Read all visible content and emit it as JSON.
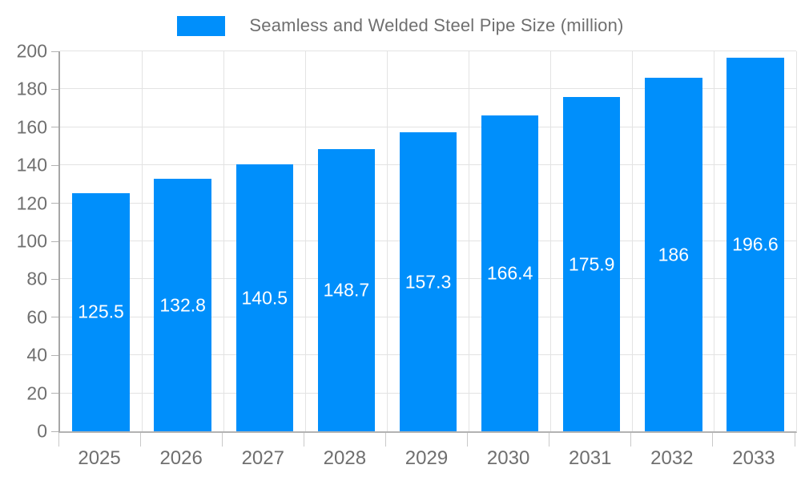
{
  "chart_data": {
    "type": "bar",
    "title": "Seamless and Welded Steel Pipe Size (million)",
    "legend": [
      {
        "label": "Seamless and Welded Steel Pipe Size (million)"
      }
    ],
    "legend_position": "top",
    "categories": [
      "2025",
      "2026",
      "2027",
      "2028",
      "2029",
      "2030",
      "2031",
      "2032",
      "2033"
    ],
    "values": [
      125.5,
      132.8,
      140.5,
      148.7,
      157.3,
      166.4,
      175.9,
      186,
      196.6
    ],
    "value_labels": [
      "125.5",
      "132.8",
      "140.5",
      "148.7",
      "157.3",
      "166.4",
      "175.9",
      "186",
      "196.6"
    ],
    "xlabel": "",
    "ylabel": "",
    "ylim": [
      0,
      200
    ],
    "y_tick_step": 20,
    "y_tick_labels": [
      "0",
      "20",
      "40",
      "60",
      "80",
      "100",
      "120",
      "140",
      "160",
      "180",
      "200"
    ],
    "grid": "horizontal and vertical category boundaries",
    "bar_width_fraction": 0.7,
    "colors": {
      "bar": "#008FFB",
      "grid_line": "#e3e3e3",
      "axis_line": "#b3b3b3",
      "axis_label": "#6f6f6f",
      "legend_text": "#6f6f6f",
      "value_label": "#ffffff",
      "background": "#ffffff"
    }
  }
}
